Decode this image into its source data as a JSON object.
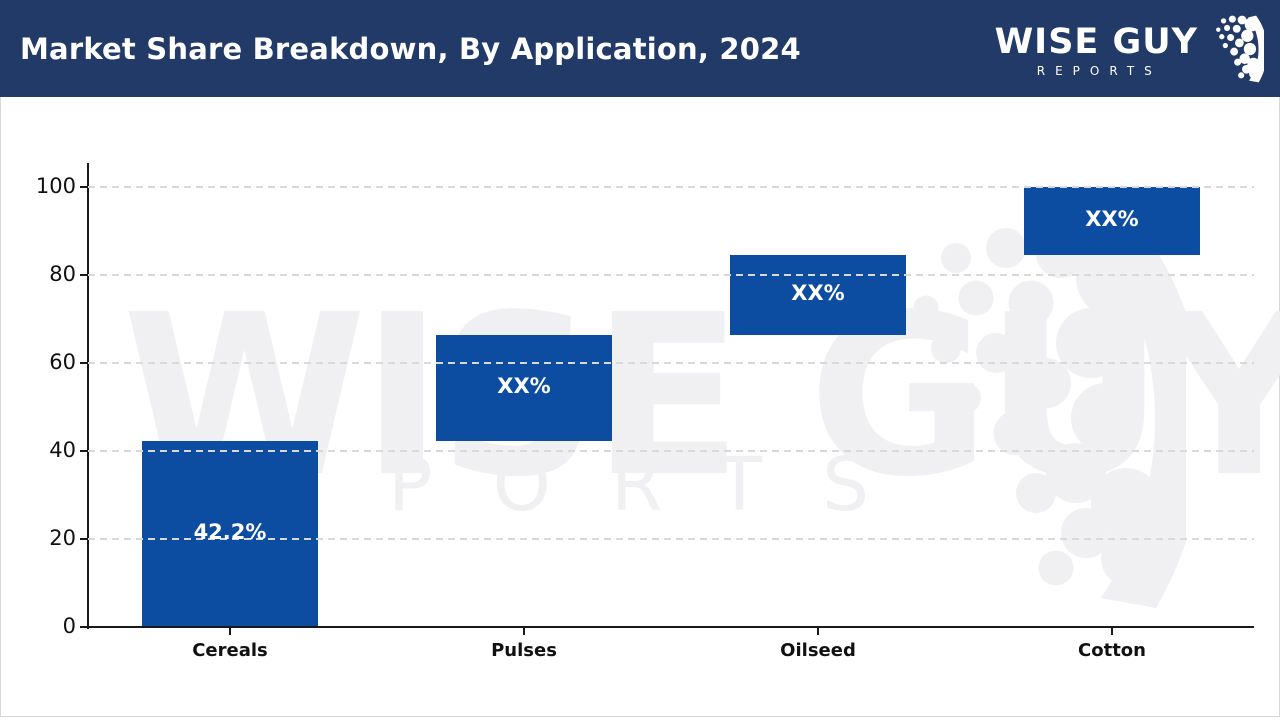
{
  "header": {
    "title": "Market Share Breakdown, By Application, 2024",
    "logo": {
      "line1": "WISE GUY",
      "line2": "REPORTS"
    }
  },
  "watermark": {
    "line1": "WISE GUY",
    "line2": "PORTS"
  },
  "chart_data": {
    "type": "bar",
    "subtype": "waterfall",
    "title": "Market Share Breakdown, By Application, 2024",
    "categories": [
      "Cereals",
      "Pulses",
      "Oilseed",
      "Cotton"
    ],
    "segments": [
      {
        "category": "Cereals",
        "start": 0,
        "end": 42.2,
        "label": "42.2%"
      },
      {
        "category": "Pulses",
        "start": 42.2,
        "end": 66.3,
        "label": "XX%"
      },
      {
        "category": "Oilseed",
        "start": 66.3,
        "end": 84.5,
        "label": "XX%"
      },
      {
        "category": "Cotton",
        "start": 84.5,
        "end": 100,
        "label": "XX%"
      }
    ],
    "yticks": [
      0,
      20,
      40,
      60,
      80,
      100
    ],
    "ytick_labels": [
      "0",
      "20",
      "40",
      "60",
      "80",
      "100"
    ],
    "ylim": [
      0,
      105
    ],
    "xlabel": "",
    "ylabel": "",
    "grid": "horizontal-dashed-on-top",
    "legend": "none"
  },
  "colors": {
    "header_bg": "#223A67",
    "bar": "#0D4DA1",
    "bar_label": "#ffffff",
    "axis": "#1a1a1a",
    "grid": "#d9d9d9",
    "watermark": "#f0f0f3",
    "card_border": "#d8d8d8"
  }
}
